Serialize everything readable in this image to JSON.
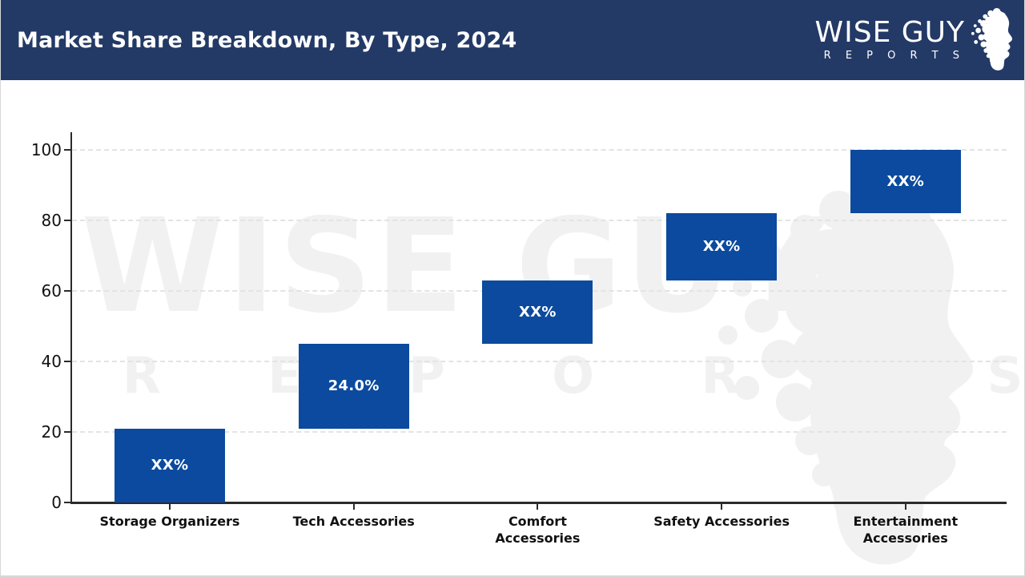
{
  "header": {
    "title": "Market Share Breakdown, By Type, 2024",
    "logo": {
      "wordmark": "WISE GUY",
      "subtext": "R E P O R T S"
    }
  },
  "watermark": {
    "line1": "WISE GUY",
    "line2": "R E P O R T S"
  },
  "chart_data": {
    "type": "bar",
    "subtype": "floating-waterfall",
    "title": "Market Share Breakdown, By Type, 2024",
    "categories": [
      "Storage Organizers",
      "Tech Accessories",
      "Comfort\nAccessories",
      "Safety Accessories",
      "Entertainment\nAccessories"
    ],
    "segments": [
      {
        "category": "Storage Organizers",
        "start": 0,
        "end": 21,
        "label": "XX%"
      },
      {
        "category": "Tech Accessories",
        "start": 21,
        "end": 45,
        "label": "24.0%"
      },
      {
        "category": "Comfort Accessories",
        "start": 45,
        "end": 63,
        "label": "XX%"
      },
      {
        "category": "Safety Accessories",
        "start": 63,
        "end": 82,
        "label": "XX%"
      },
      {
        "category": "Entertainment Accessories",
        "start": 82,
        "end": 100,
        "label": "XX%"
      }
    ],
    "xlabel": "",
    "ylabel": "",
    "yticks": [
      0,
      20,
      40,
      60,
      80,
      100
    ],
    "ylim": [
      0,
      105
    ],
    "grid": "horizontal-dashed",
    "legend": "none",
    "colors": {
      "bar": "#0b4a9e",
      "header_bg": "#233a66",
      "grid": "#e3e3e3",
      "axis": "#2b2b2b",
      "watermark": "#f1f1f1",
      "bar_label_text": "#ffffff"
    }
  }
}
